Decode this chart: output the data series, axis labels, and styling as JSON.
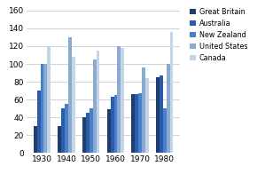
{
  "years": [
    "1930",
    "1940",
    "1950",
    "1960",
    "1970",
    "1980"
  ],
  "series": {
    "Great Britain": [
      30,
      30,
      40,
      49,
      66,
      85
    ],
    "Australia": [
      70,
      50,
      45,
      63,
      66,
      87
    ],
    "New Zealand": [
      100,
      55,
      50,
      65,
      67,
      50
    ],
    "United States": [
      100,
      130,
      105,
      120,
      96,
      100
    ],
    "Canada": [
      120,
      108,
      115,
      118,
      84,
      136
    ]
  },
  "colors": {
    "Great Britain": "#1F3D6E",
    "Australia": "#2A5CA8",
    "New Zealand": "#4A7FCC",
    "United States": "#8BAAD0",
    "Canada": "#C5D5E8"
  },
  "ylim": [
    0,
    160
  ],
  "yticks": [
    0,
    20,
    40,
    60,
    80,
    100,
    120,
    140,
    160
  ],
  "background_color": "#FFFFFF",
  "grid_color": "#CCCCCC",
  "bar_width": 0.14,
  "figwidth": 2.99,
  "figheight": 1.96,
  "dpi": 100
}
